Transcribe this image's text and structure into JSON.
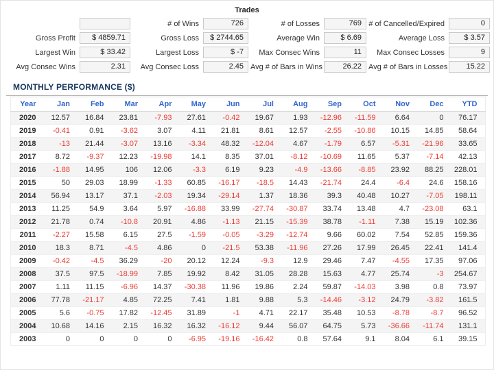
{
  "trades": {
    "title": "Trades",
    "stats": [
      {
        "label": "",
        "value": ""
      },
      {
        "label": "# of Wins",
        "value": "726"
      },
      {
        "label": "# of Losses",
        "value": "769"
      },
      {
        "label": "# of Cancelled/Expired",
        "value": "0"
      },
      {
        "label": "Gross Profit",
        "value": "$ 4859.71"
      },
      {
        "label": "Gross Loss",
        "value": "$ 2744.65"
      },
      {
        "label": "Average Win",
        "value": "$ 6.69"
      },
      {
        "label": "Average Loss",
        "value": "$ 3.57"
      },
      {
        "label": "Largest Win",
        "value": "$ 33.42"
      },
      {
        "label": "Largest Loss",
        "value": "$ -7"
      },
      {
        "label": "Max Consec Wins",
        "value": "11"
      },
      {
        "label": "Max Consec Losses",
        "value": "9"
      },
      {
        "label": "Avg Consec Wins",
        "value": "2.31"
      },
      {
        "label": "Avg Consec Loss",
        "value": "2.45"
      },
      {
        "label": "Avg # of Bars in Wins",
        "value": "26.22"
      },
      {
        "label": "Avg # of Bars in Losses",
        "value": "15.22"
      }
    ]
  },
  "monthly": {
    "title": "MONTHLY PERFORMANCE ($)",
    "columns": [
      "Year",
      "Jan",
      "Feb",
      "Mar",
      "Apr",
      "May",
      "Jun",
      "Jul",
      "Aug",
      "Sep",
      "Oct",
      "Nov",
      "Dec",
      "YTD"
    ],
    "rows": [
      [
        "2020",
        "12.57",
        "16.84",
        "23.81",
        "-7.93",
        "27.61",
        "-0.42",
        "19.67",
        "1.93",
        "-12.96",
        "-11.59",
        "6.64",
        "0",
        "76.17"
      ],
      [
        "2019",
        "-0.41",
        "0.91",
        "-3.62",
        "3.07",
        "4.11",
        "21.81",
        "8.61",
        "12.57",
        "-2.55",
        "-10.86",
        "10.15",
        "14.85",
        "58.64"
      ],
      [
        "2018",
        "-13",
        "21.44",
        "-3.07",
        "13.16",
        "-3.34",
        "48.32",
        "-12.04",
        "4.67",
        "-1.79",
        "6.57",
        "-5.31",
        "-21.96",
        "33.65"
      ],
      [
        "2017",
        "8.72",
        "-9.37",
        "12.23",
        "-19.98",
        "14.1",
        "8.35",
        "37.01",
        "-8.12",
        "-10.69",
        "11.65",
        "5.37",
        "-7.14",
        "42.13"
      ],
      [
        "2016",
        "-1.88",
        "14.95",
        "106",
        "12.06",
        "-3.3",
        "6.19",
        "9.23",
        "-4.9",
        "-13.66",
        "-8.85",
        "23.92",
        "88.25",
        "228.01"
      ],
      [
        "2015",
        "50",
        "29.03",
        "18.99",
        "-1.33",
        "60.85",
        "-16.17",
        "-18.5",
        "14.43",
        "-21.74",
        "24.4",
        "-6.4",
        "24.6",
        "158.16"
      ],
      [
        "2014",
        "56.94",
        "13.17",
        "37.1",
        "-2.03",
        "19.34",
        "-29.14",
        "1.37",
        "18.36",
        "39.3",
        "40.48",
        "10.27",
        "-7.05",
        "198.11"
      ],
      [
        "2013",
        "11.25",
        "54.9",
        "3.64",
        "5.97",
        "-16.88",
        "33.99",
        "-27.74",
        "-30.87",
        "33.74",
        "13.48",
        "4.7",
        "-23.08",
        "63.1"
      ],
      [
        "2012",
        "21.78",
        "0.74",
        "-10.8",
        "20.91",
        "4.86",
        "-1.13",
        "21.15",
        "-15.39",
        "38.78",
        "-1.11",
        "7.38",
        "15.19",
        "102.36"
      ],
      [
        "2011",
        "-2.27",
        "15.58",
        "6.15",
        "27.5",
        "-1.59",
        "-0.05",
        "-3.29",
        "-12.74",
        "9.66",
        "60.02",
        "7.54",
        "52.85",
        "159.36"
      ],
      [
        "2010",
        "18.3",
        "8.71",
        "-4.5",
        "4.86",
        "0",
        "-21.5",
        "53.38",
        "-11.96",
        "27.26",
        "17.99",
        "26.45",
        "22.41",
        "141.4"
      ],
      [
        "2009",
        "-0.42",
        "-4.5",
        "36.29",
        "-20",
        "20.12",
        "12.24",
        "-9.3",
        "12.9",
        "29.46",
        "7.47",
        "-4.55",
        "17.35",
        "97.06"
      ],
      [
        "2008",
        "37.5",
        "97.5",
        "-18.99",
        "7.85",
        "19.92",
        "8.42",
        "31.05",
        "28.28",
        "15.63",
        "4.77",
        "25.74",
        "-3",
        "254.67"
      ],
      [
        "2007",
        "1.11",
        "11.15",
        "-6.96",
        "14.37",
        "-30.38",
        "11.96",
        "19.86",
        "2.24",
        "59.87",
        "-14.03",
        "3.98",
        "0.8",
        "73.97"
      ],
      [
        "2006",
        "77.78",
        "-21.17",
        "4.85",
        "72.25",
        "7.41",
        "1.81",
        "9.88",
        "5.3",
        "-14.46",
        "-3.12",
        "24.79",
        "-3.82",
        "161.5"
      ],
      [
        "2005",
        "5.6",
        "-0.75",
        "17.82",
        "-12.45",
        "31.89",
        "-1",
        "4.71",
        "22.17",
        "35.48",
        "10.53",
        "-8.78",
        "-8.7",
        "96.52"
      ],
      [
        "2004",
        "10.68",
        "14.16",
        "2.15",
        "16.32",
        "16.32",
        "-16.12",
        "9.44",
        "56.07",
        "64.75",
        "5.73",
        "-36.66",
        "-11.74",
        "131.1"
      ],
      [
        "2003",
        "0",
        "0",
        "0",
        "0",
        "-6.95",
        "-19.16",
        "-16.42",
        "0.8",
        "57.64",
        "9.1",
        "8.04",
        "6.1",
        "39.15"
      ]
    ]
  },
  "colors": {
    "header_blue": "#3366cc",
    "negative_red": "#ee3b33",
    "title_navy": "#17365d",
    "alt_row_bg": "#f4f4f4",
    "stat_box_bg": "#f5f5f5",
    "stat_box_border": "#c9c9c9"
  }
}
